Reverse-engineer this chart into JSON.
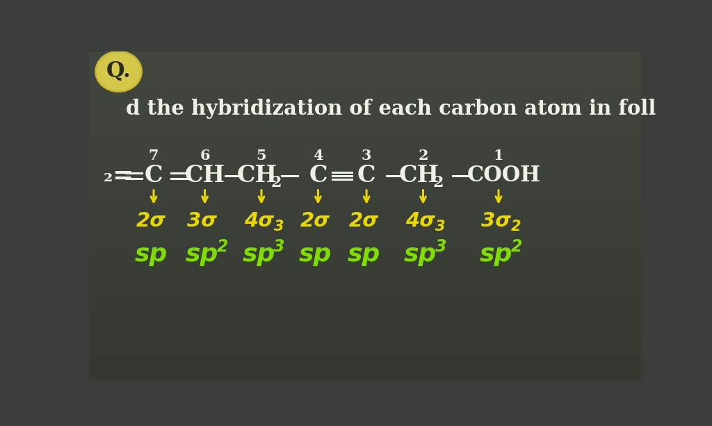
{
  "title": "d the hybridization of each carbon atom in foll",
  "title_fontsize": 21,
  "bg_color": "#3a3d3a",
  "question_label": "Q.",
  "white_color": "#f0f0e8",
  "yellow_color": "#e8d800",
  "green_color": "#80dd00",
  "mol_formula_left": "_2 =",
  "carbon_nums": [
    "7",
    "6",
    "5",
    "4",
    "3",
    "2",
    "1"
  ],
  "carbon_formulas": [
    "C",
    "CH",
    "CH2",
    "C",
    "C",
    "CH2",
    "COOH"
  ],
  "bond_before": [
    "=",
    "=",
    "-",
    "-",
    "≡",
    "-",
    "-"
  ],
  "sigmas": [
    "2σ",
    "3σ",
    "4σ",
    "2σ",
    "2σ",
    "4σ",
    "3σ"
  ],
  "sigma_subs": [
    "",
    "",
    "3",
    "",
    "",
    "3",
    "2"
  ],
  "hybrids": [
    "sp",
    "sp",
    "sp",
    "sp",
    "sp",
    "sp",
    "sp"
  ],
  "hybrid_subs": [
    "",
    "2",
    "3",
    "",
    "",
    "3",
    "2"
  ]
}
